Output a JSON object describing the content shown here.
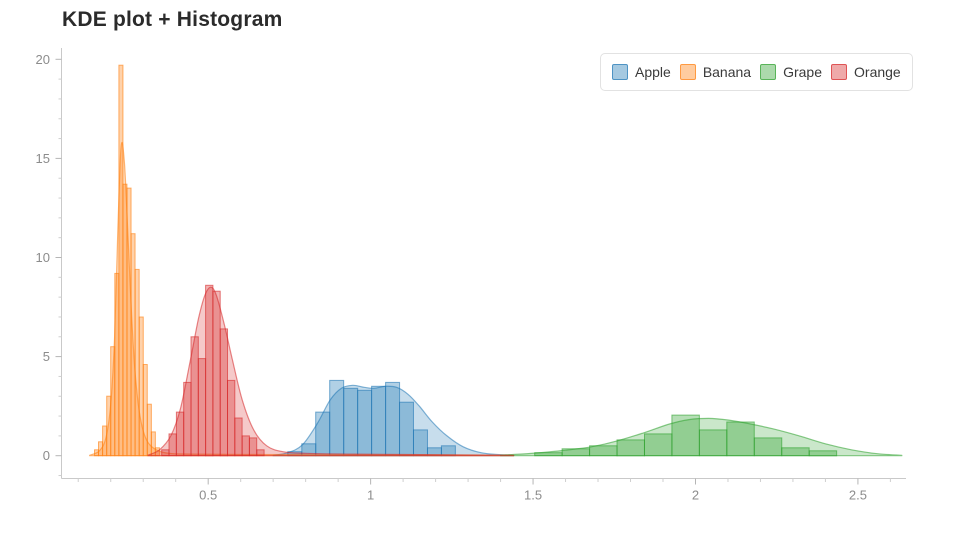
{
  "title": "KDE plot + Histogram",
  "legend": {
    "position": "top_right",
    "items": [
      {
        "label": "Apple",
        "color": "#1f77b4"
      },
      {
        "label": "Banana",
        "color": "#ff7f0e"
      },
      {
        "label": "Grape",
        "color": "#2ca02c"
      },
      {
        "label": "Orange",
        "color": "#d62728"
      }
    ]
  },
  "chart_data": {
    "type": "histogram+kde",
    "title": "KDE plot + Histogram",
    "xlabel": "",
    "ylabel": "",
    "grid": false,
    "legend_position": "top_right",
    "x_range": [
      0.05,
      2.648
    ],
    "y_range": [
      -1.15,
      20.57
    ],
    "x_ticks": {
      "values": [
        0.5,
        1,
        1.5,
        2,
        2.5
      ],
      "labels": [
        "0.5",
        "1",
        "1.5",
        "2",
        "2.5"
      ]
    },
    "y_ticks": {
      "values": [
        0,
        5,
        10,
        15,
        20
      ],
      "labels": [
        "0",
        "5",
        "10",
        "15",
        "20"
      ]
    },
    "x_minor_step": 0.1,
    "y_minor_step": 1,
    "series": [
      {
        "name": "Apple",
        "color": "#1f77b4",
        "hist": {
          "bin_start": 0.745,
          "bin_width": 0.043,
          "heights": [
            0.2,
            0.6,
            2.2,
            3.8,
            3.4,
            3.3,
            3.5,
            3.7,
            2.7,
            1.3,
            0.4,
            0.5
          ]
        },
        "kde": {
          "x": [
            0.7,
            0.745,
            0.79,
            0.835,
            0.875,
            0.91,
            0.945,
            0.98,
            1.01,
            1.045,
            1.08,
            1.115,
            1.15,
            1.19,
            1.235,
            1.285,
            1.34,
            1.4,
            1.44
          ],
          "y": [
            0.02,
            0.15,
            0.55,
            1.6,
            2.8,
            3.4,
            3.55,
            3.45,
            3.4,
            3.5,
            3.45,
            3.1,
            2.5,
            1.7,
            1.0,
            0.45,
            0.15,
            0.05,
            0.02
          ]
        }
      },
      {
        "name": "Banana",
        "color": "#ff7f0e",
        "hist": {
          "bin_start": 0.15,
          "bin_width": 0.0125,
          "heights": [
            0.3,
            0.7,
            1.5,
            3.0,
            5.5,
            9.2,
            19.7,
            13.7,
            13.5,
            11.2,
            9.4,
            7.0,
            4.6,
            2.6,
            1.2,
            0.4
          ]
        },
        "kde": {
          "x": [
            0.135,
            0.165,
            0.185,
            0.2,
            0.212,
            0.222,
            0.232,
            0.242,
            0.252,
            0.263,
            0.275,
            0.29,
            0.31,
            0.34,
            0.38,
            0.45,
            0.6,
            0.85,
            1.15,
            1.44
          ],
          "y": [
            0.02,
            0.25,
            0.9,
            2.6,
            6.0,
            11.5,
            15.6,
            14.8,
            11.5,
            7.5,
            4.2,
            2.0,
            0.8,
            0.3,
            0.12,
            0.08,
            0.06,
            0.05,
            0.04,
            0.02
          ]
        }
      },
      {
        "name": "Grape",
        "color": "#2ca02c",
        "hist": {
          "bin_start": 1.505,
          "bin_width": 0.0845,
          "heights": [
            0.15,
            0.35,
            0.5,
            0.8,
            1.1,
            2.05,
            1.3,
            1.7,
            0.9,
            0.4,
            0.25
          ]
        },
        "kde": {
          "x": [
            1.4,
            1.46,
            1.53,
            1.6,
            1.68,
            1.76,
            1.84,
            1.92,
            1.98,
            2.04,
            2.1,
            2.17,
            2.24,
            2.32,
            2.4,
            2.48,
            2.56,
            2.635
          ],
          "y": [
            0.03,
            0.08,
            0.16,
            0.28,
            0.45,
            0.75,
            1.15,
            1.6,
            1.82,
            1.88,
            1.8,
            1.6,
            1.35,
            1.0,
            0.6,
            0.3,
            0.1,
            0.02
          ]
        }
      },
      {
        "name": "Orange",
        "color": "#d62728",
        "hist": {
          "bin_start": 0.357,
          "bin_width": 0.0225,
          "heights": [
            0.3,
            1.1,
            2.2,
            3.7,
            6.0,
            4.9,
            8.6,
            8.3,
            6.4,
            3.8,
            1.9,
            1.0,
            0.9,
            0.3
          ]
        },
        "kde": {
          "x": [
            0.315,
            0.35,
            0.385,
            0.415,
            0.445,
            0.47,
            0.49,
            0.508,
            0.525,
            0.55,
            0.575,
            0.605,
            0.64,
            0.68,
            0.73,
            0.8,
            0.95,
            1.2,
            1.44
          ],
          "y": [
            0.03,
            0.3,
            1.0,
            2.4,
            4.8,
            6.9,
            8.1,
            8.5,
            8.1,
            6.6,
            4.8,
            2.8,
            1.3,
            0.5,
            0.2,
            0.12,
            0.08,
            0.05,
            0.02
          ]
        }
      }
    ]
  },
  "style": {
    "axis_line_color": "#c9c9c9",
    "tick_label_color": "#8c8c8c",
    "hist_fill_alpha": 0.35,
    "hist_stroke_alpha": 0.6,
    "kde_fill_alpha": 0.25,
    "kde_stroke_alpha": 0.55
  }
}
